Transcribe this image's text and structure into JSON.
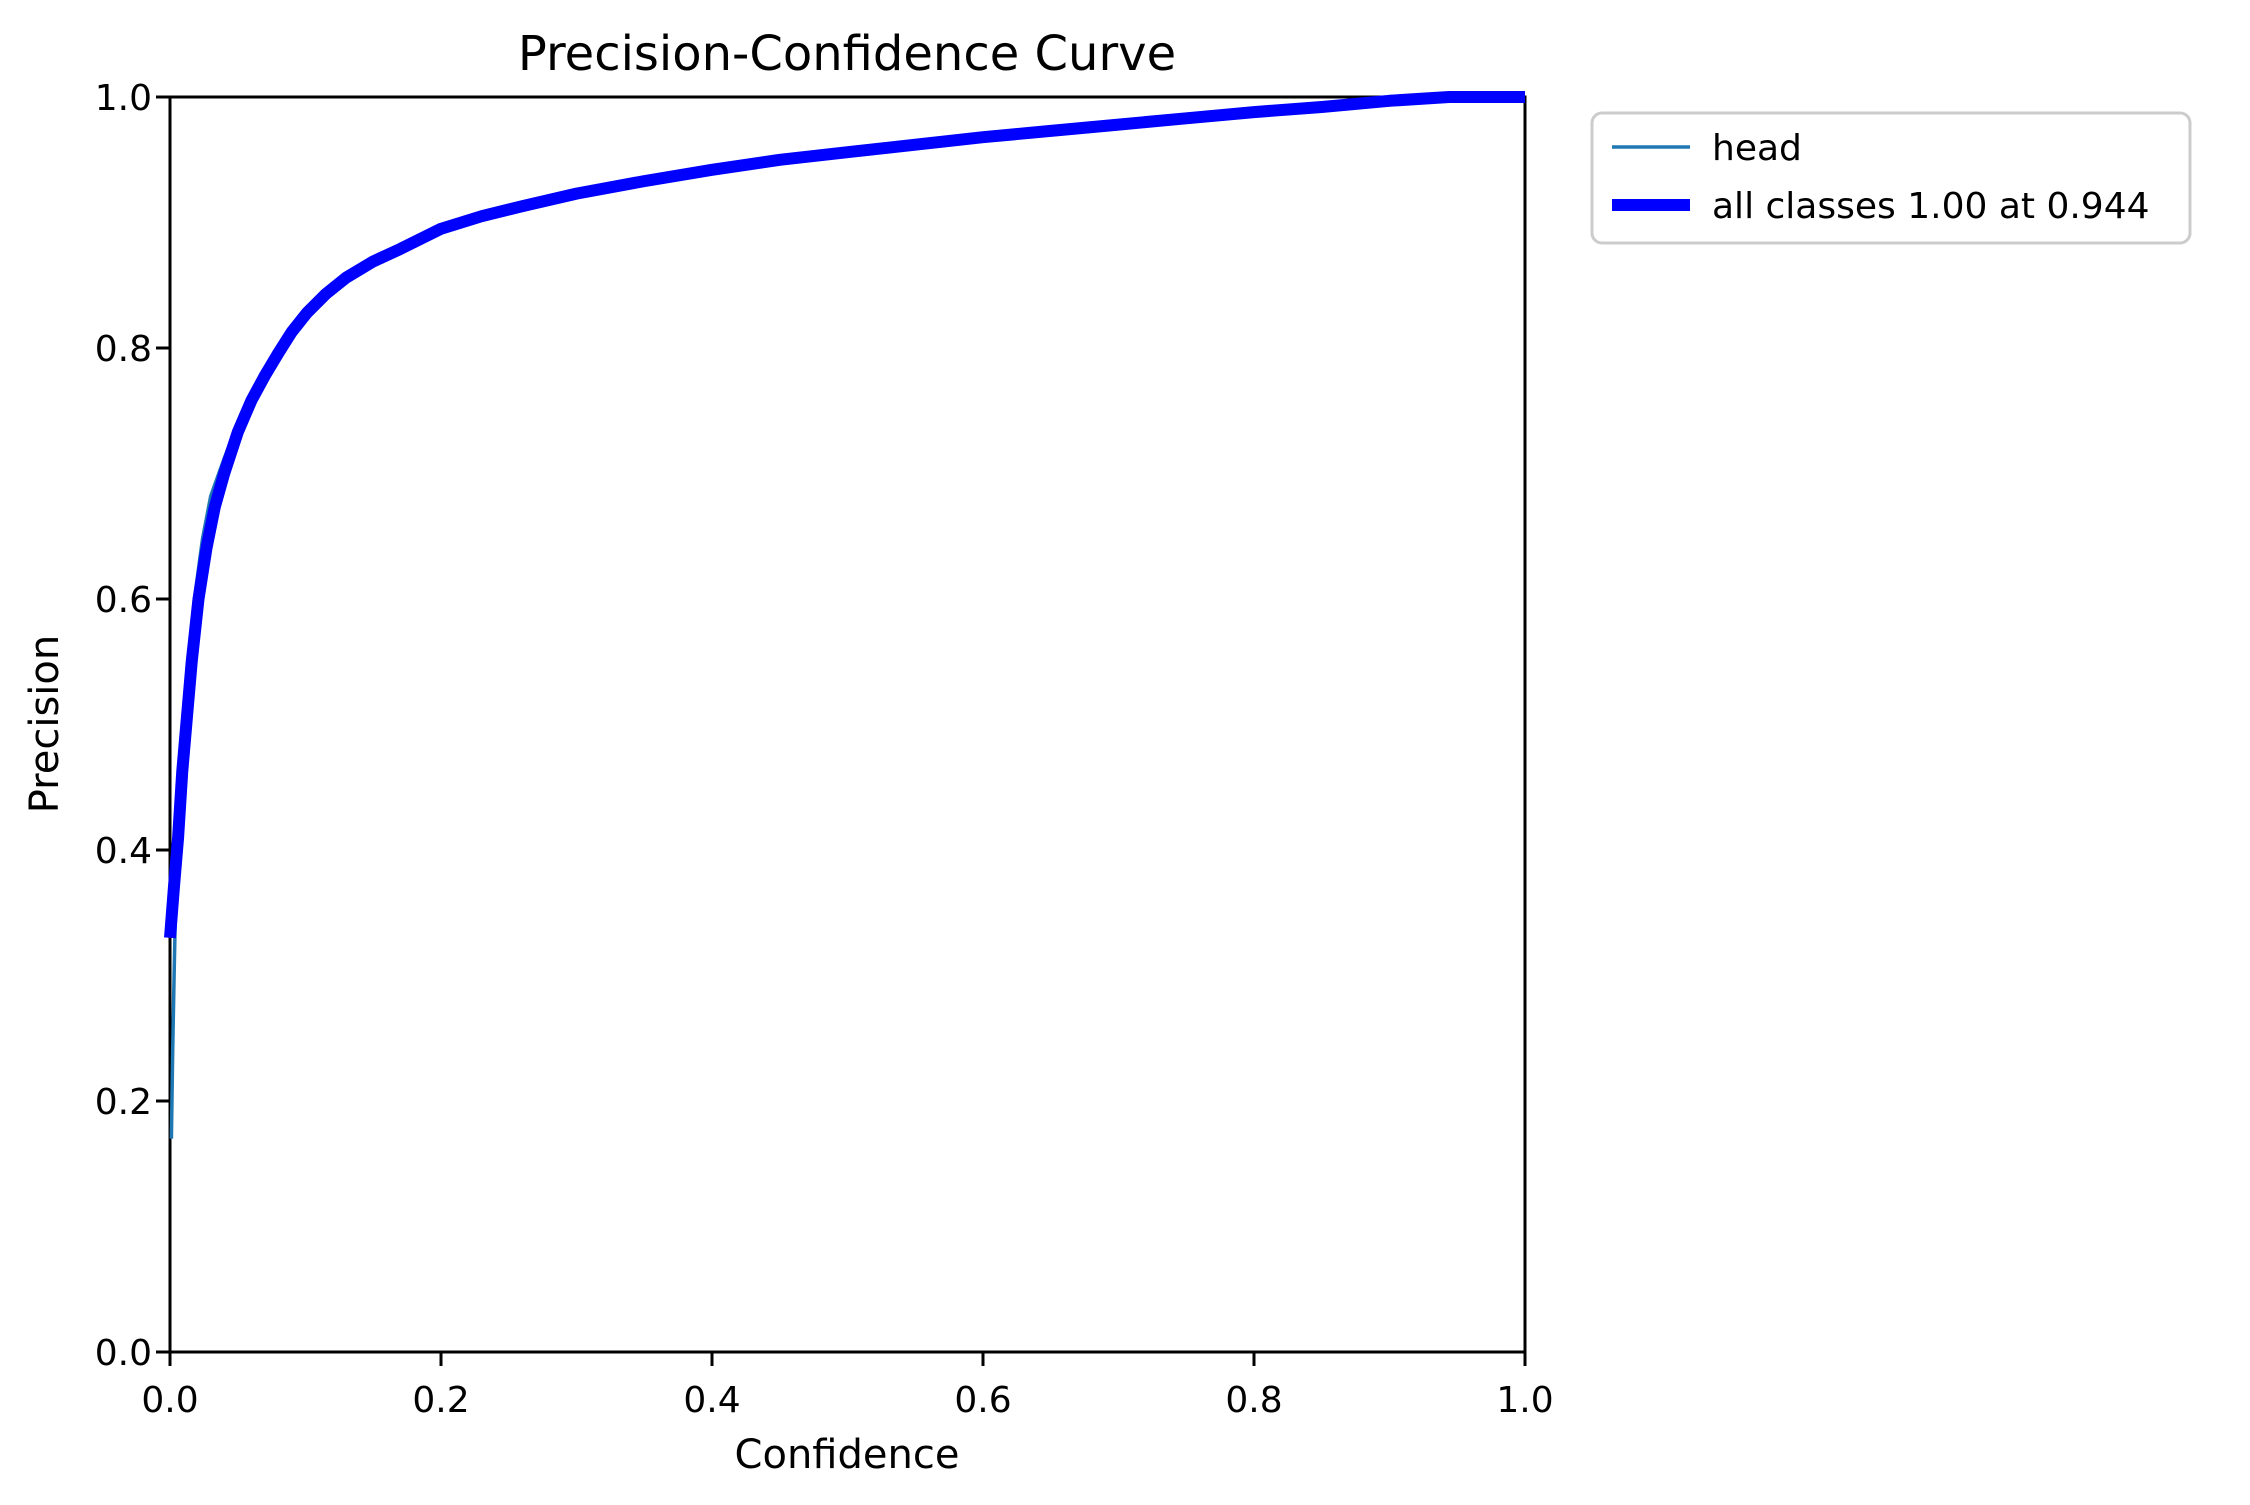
{
  "figure": {
    "background": "#ffffff",
    "spine_color": "#000000",
    "legend_edge_color": "#cccccc"
  },
  "chart_data": {
    "type": "line",
    "title": "Precision-Confidence Curve",
    "xlabel": "Confidence",
    "ylabel": "Precision",
    "xlim": [
      0,
      1
    ],
    "ylim": [
      0,
      1
    ],
    "grid": false,
    "legend_position": "upper-right-outside",
    "x_ticks": [
      "0.0",
      "0.2",
      "0.4",
      "0.6",
      "0.8",
      "1.0"
    ],
    "y_ticks": [
      "0.0",
      "0.2",
      "0.4",
      "0.6",
      "0.8",
      "1.0"
    ],
    "annotation": "all classes reach precision 1.00 at confidence 0.944",
    "series": [
      {
        "name": "head",
        "color": "#1f77b4",
        "width": 3.5,
        "points": [
          [
            0.001,
            0.17
          ],
          [
            0.002,
            0.24
          ],
          [
            0.003,
            0.3
          ],
          [
            0.004,
            0.35
          ],
          [
            0.006,
            0.42
          ],
          [
            0.008,
            0.46
          ],
          [
            0.01,
            0.5
          ],
          [
            0.014,
            0.555
          ],
          [
            0.018,
            0.6
          ],
          [
            0.024,
            0.648
          ],
          [
            0.03,
            0.682
          ],
          [
            0.04,
            0.712
          ],
          [
            0.05,
            0.74
          ],
          [
            0.065,
            0.77
          ],
          [
            0.08,
            0.797
          ],
          [
            0.1,
            0.828
          ],
          [
            0.13,
            0.857
          ],
          [
            0.17,
            0.88
          ],
          [
            0.2,
            0.894
          ],
          [
            0.25,
            0.91
          ],
          [
            0.3,
            0.923
          ],
          [
            0.35,
            0.933
          ],
          [
            0.4,
            0.942
          ],
          [
            0.45,
            0.95
          ],
          [
            0.5,
            0.956
          ],
          [
            0.55,
            0.962
          ],
          [
            0.6,
            0.968
          ],
          [
            0.65,
            0.973
          ],
          [
            0.7,
            0.978
          ],
          [
            0.75,
            0.983
          ],
          [
            0.8,
            0.988
          ],
          [
            0.85,
            0.992
          ],
          [
            0.9,
            0.997
          ],
          [
            0.944,
            1.0
          ],
          [
            1.0,
            1.0
          ]
        ]
      },
      {
        "name": "all classes 1.00 at 0.944",
        "color": "#0000ff",
        "width": 12,
        "points": [
          [
            0.0,
            0.33
          ],
          [
            0.003,
            0.372
          ],
          [
            0.006,
            0.41
          ],
          [
            0.009,
            0.462
          ],
          [
            0.012,
            0.5
          ],
          [
            0.016,
            0.55
          ],
          [
            0.021,
            0.6
          ],
          [
            0.027,
            0.641
          ],
          [
            0.033,
            0.673
          ],
          [
            0.04,
            0.7
          ],
          [
            0.05,
            0.733
          ],
          [
            0.06,
            0.758
          ],
          [
            0.07,
            0.778
          ],
          [
            0.08,
            0.796
          ],
          [
            0.09,
            0.813
          ],
          [
            0.101,
            0.828
          ],
          [
            0.115,
            0.843
          ],
          [
            0.13,
            0.856
          ],
          [
            0.15,
            0.869
          ],
          [
            0.17,
            0.879
          ],
          [
            0.2,
            0.895
          ],
          [
            0.23,
            0.905
          ],
          [
            0.26,
            0.913
          ],
          [
            0.3,
            0.923
          ],
          [
            0.35,
            0.933
          ],
          [
            0.4,
            0.942
          ],
          [
            0.45,
            0.95
          ],
          [
            0.5,
            0.956
          ],
          [
            0.55,
            0.962
          ],
          [
            0.6,
            0.968
          ],
          [
            0.65,
            0.973
          ],
          [
            0.7,
            0.978
          ],
          [
            0.75,
            0.983
          ],
          [
            0.8,
            0.988
          ],
          [
            0.85,
            0.992
          ],
          [
            0.9,
            0.997
          ],
          [
            0.944,
            1.0
          ],
          [
            1.0,
            1.0
          ]
        ]
      }
    ]
  }
}
